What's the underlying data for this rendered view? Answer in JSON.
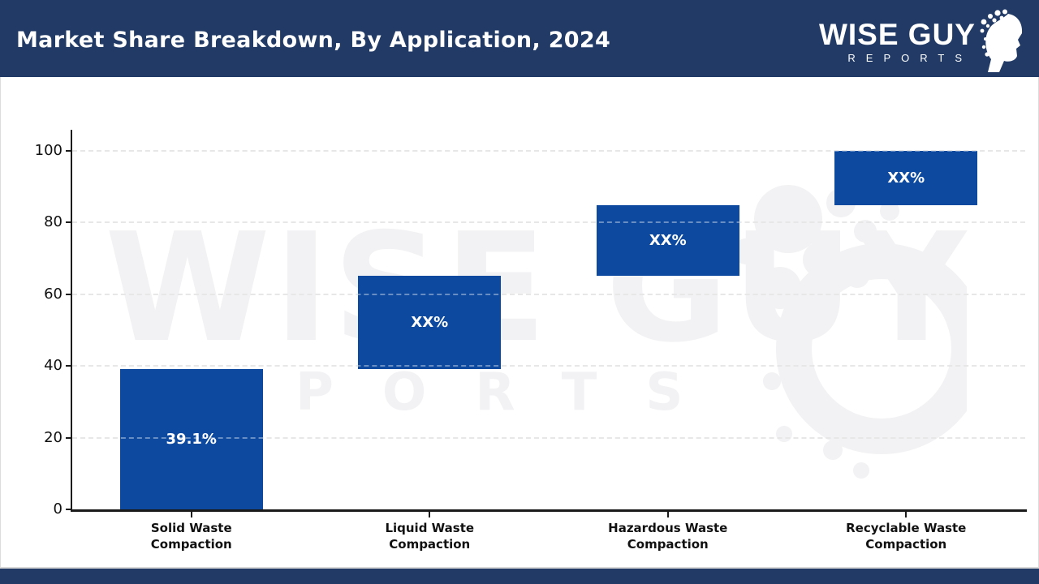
{
  "header": {
    "title": "Market Share Breakdown, By Application, 2024"
  },
  "brand": {
    "name": "WISE GUY",
    "sub": "REPORTS",
    "icon": "dotted-face-logo"
  },
  "watermark": {
    "line1": "WISE GUY",
    "line2": "REPORTS"
  },
  "colors": {
    "header_bg": "#213a66",
    "footer_bg": "#213a66",
    "bar": "#0d4a9f",
    "bar_label": "#ffffff",
    "watermark": "#f2f2f4",
    "gridline": "#d8d8d8"
  },
  "chart_data": {
    "type": "bar",
    "subtype": "floating-waterfall",
    "title": "Market Share Breakdown, By Application, 2024",
    "categories": [
      "Solid Waste Compaction",
      "Liquid Waste Compaction",
      "Hazardous Waste Compaction",
      "Recyclable Waste Compaction"
    ],
    "bars": [
      {
        "category_line1": "Solid Waste",
        "category_line2": "Compaction",
        "start": 0,
        "end": 39.1,
        "value_label": "39.1%"
      },
      {
        "category_line1": "Liquid Waste",
        "category_line2": "Compaction",
        "start": 39.1,
        "end": 65.2,
        "value_label": "XX%"
      },
      {
        "category_line1": "Hazardous Waste",
        "category_line2": "Compaction",
        "start": 65.2,
        "end": 84.8,
        "value_label": "XX%"
      },
      {
        "category_line1": "Recyclable Waste",
        "category_line2": "Compaction",
        "start": 84.8,
        "end": 100,
        "value_label": "XX%"
      }
    ],
    "xlabel": "",
    "ylabel": "",
    "ylim": [
      0,
      100
    ],
    "yticks": [
      0,
      20,
      40,
      60,
      80,
      100
    ],
    "grid": "horizontal-dashed",
    "legend": false
  }
}
